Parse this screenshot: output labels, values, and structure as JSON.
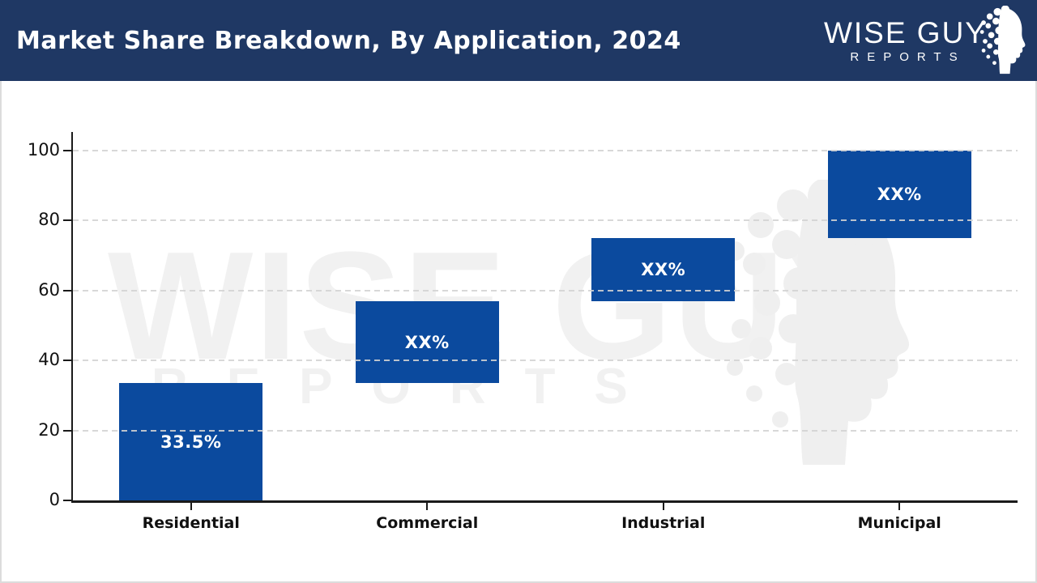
{
  "header": {
    "title": "Market Share Breakdown, By Application, 2024",
    "logo": {
      "line1": "WISE GUY",
      "line2": "REPORTS"
    }
  },
  "watermark": {
    "line1": "WISE GUY",
    "line2": "REPORTS"
  },
  "chart_data": {
    "type": "bar",
    "subtype": "waterfall-floating-bars",
    "title": "Market Share Breakdown, By Application, 2024",
    "categories": [
      "Residential",
      "Commercial",
      "Industrial",
      "Municipal"
    ],
    "segments": [
      {
        "category": "Residential",
        "start": 0,
        "end": 33.5,
        "label": "33.5%"
      },
      {
        "category": "Commercial",
        "start": 33.5,
        "end": 57,
        "label": "XX%"
      },
      {
        "category": "Industrial",
        "start": 57,
        "end": 75,
        "label": "XX%"
      },
      {
        "category": "Municipal",
        "start": 75,
        "end": 100,
        "label": "XX%"
      }
    ],
    "xlabel": "",
    "ylabel": "",
    "ylim": [
      0,
      100
    ],
    "yticks": [
      0,
      20,
      40,
      60,
      80,
      100
    ],
    "grid": "horizontal-dashed",
    "legend": "none",
    "colors": {
      "bar": "#0b4a9e",
      "bar_label": "#ffffff",
      "grid": "#d3d3d3",
      "axis": "#1a1a1a",
      "header_bg": "#1f3864",
      "watermark": "#f1f1f1"
    }
  }
}
